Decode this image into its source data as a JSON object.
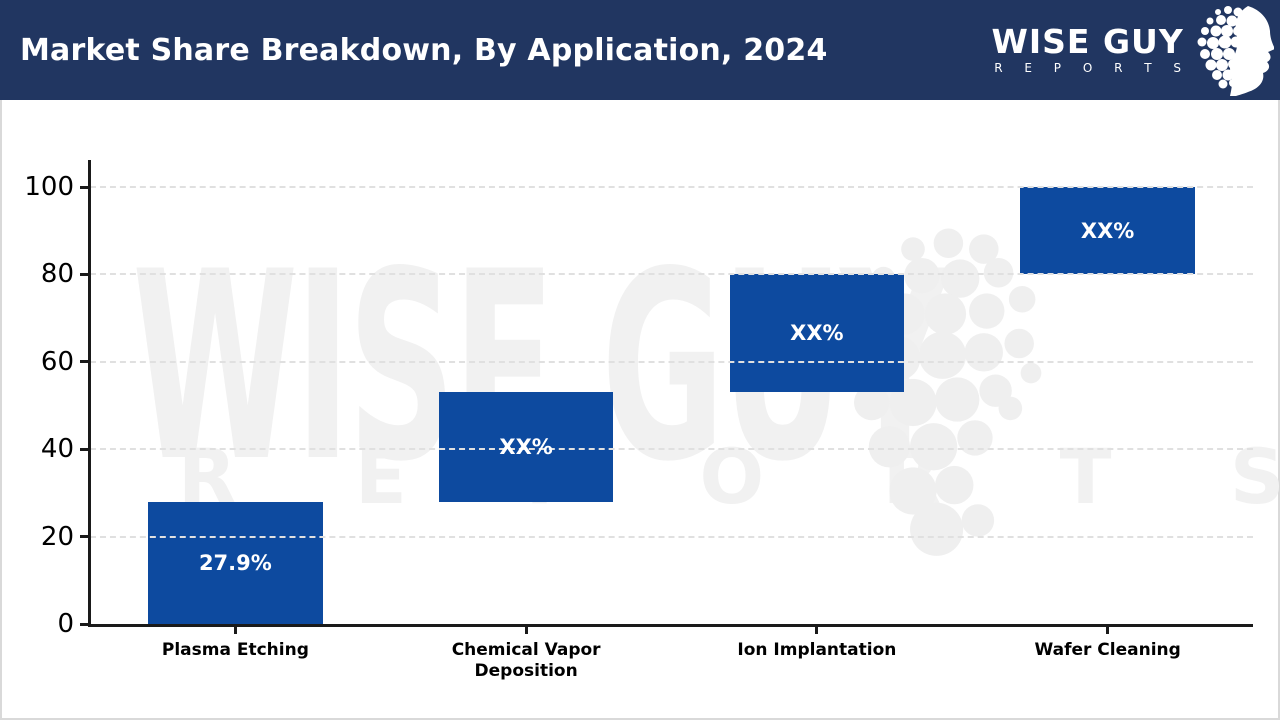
{
  "header": {
    "title": "Market Share Breakdown, By Application, 2024",
    "bg_color": "#213661",
    "brand": {
      "line1": "WISE GUY",
      "line2": "R E P O R T S",
      "icon": "dotted-head-icon"
    }
  },
  "watermark": {
    "line1": "WISE GUY",
    "line2": "R E P O R T S",
    "icon": "dotted-head-watermark-icon"
  },
  "chart_data": {
    "type": "bar",
    "subtype": "waterfall",
    "title": "Market Share Breakdown, By Application, 2024",
    "categories": [
      "Plasma Etching",
      "Chemical Vapor\nDeposition",
      "Ion Implantation",
      "Wafer Cleaning"
    ],
    "segments": [
      {
        "category": "Plasma Etching",
        "start": 0,
        "end": 27.9,
        "label": "27.9%"
      },
      {
        "category": "Chemical Vapor Deposition",
        "start": 27.9,
        "end": 53,
        "label": "XX%"
      },
      {
        "category": "Ion Implantation",
        "start": 53,
        "end": 80,
        "label": "XX%"
      },
      {
        "category": "Wafer Cleaning",
        "start": 80,
        "end": 100,
        "label": "XX%"
      }
    ],
    "xlabel": "",
    "ylabel": "",
    "ylim": [
      0,
      105
    ],
    "yticks": [
      0,
      20,
      40,
      60,
      80,
      100
    ],
    "grid": "dashed-horizontal",
    "legend": "none",
    "bar_color": "#0d4a9f",
    "bar_label_color": "#ffffff",
    "axis_color": "#1a1a1a",
    "gridline_color": "#e0e0e0"
  }
}
